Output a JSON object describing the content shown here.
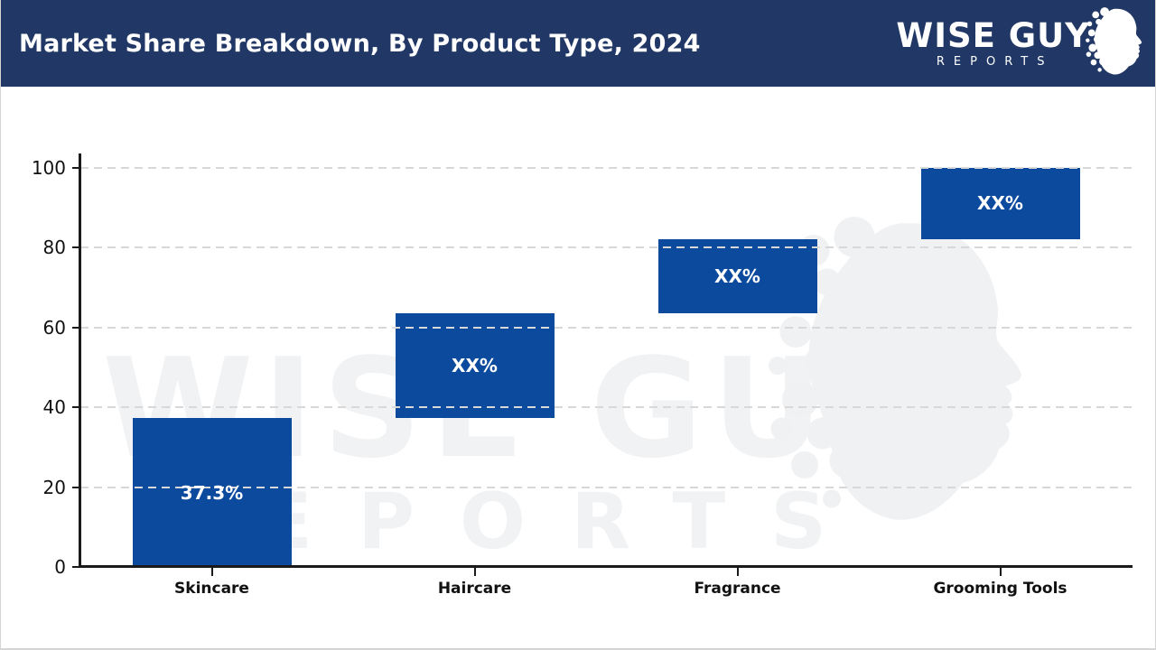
{
  "header": {
    "title": "Market Share Breakdown, By Product Type, 2024",
    "bg_color": "#213866",
    "logo": {
      "line1": "WISE GUY",
      "line2": "REPORTS"
    }
  },
  "watermark": {
    "line1": "WISE GUY",
    "line2": "REPORTS"
  },
  "chart_data": {
    "type": "waterfall",
    "title": "Market Share Breakdown, By Product Type, 2024",
    "categories": [
      "Skincare",
      "Haircare",
      "Fragrance",
      "Grooming Tools"
    ],
    "segments": [
      {
        "category": "Skincare",
        "start": 0,
        "end": 37.3,
        "label": "37.3%"
      },
      {
        "category": "Haircare",
        "start": 37.3,
        "end": 63.6,
        "label": "XX%"
      },
      {
        "category": "Fragrance",
        "start": 63.6,
        "end": 82.2,
        "label": "XX%"
      },
      {
        "category": "Grooming Tools",
        "start": 82.2,
        "end": 100,
        "label": "XX%"
      }
    ],
    "y_ticks": [
      0,
      20,
      40,
      60,
      80,
      100
    ],
    "ylim": [
      0,
      100
    ],
    "grid": true,
    "legend": false,
    "bar_color": "#0c4a9e",
    "bar_label_color": "#ffffff",
    "gridline_color": "#d8d8d8",
    "axis_color": "#1a1a1a"
  }
}
